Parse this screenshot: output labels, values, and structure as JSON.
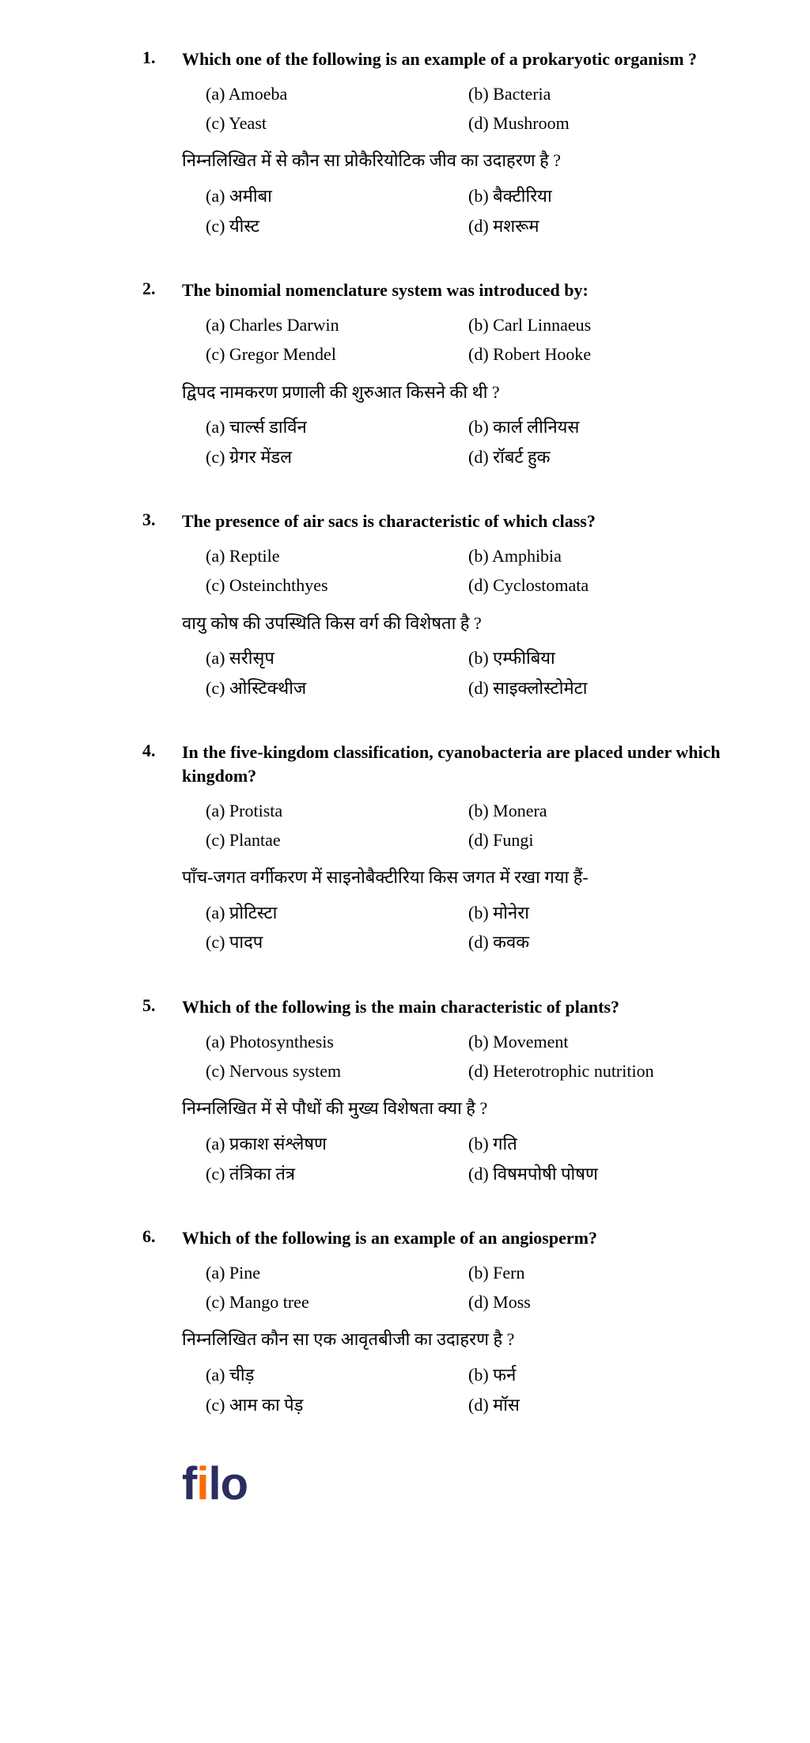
{
  "questions": [
    {
      "num": "1.",
      "text_en": "Which one of the following is an example of a prokaryotic organism ?",
      "opts_en": {
        "a": "(a) Amoeba",
        "b": "(b) Bacteria",
        "c": "(c) Yeast",
        "d": "(d) Mushroom"
      },
      "text_hi": "निम्नलिखित में से कौन सा प्रोकैरियोटिक जीव का उदाहरण है ?",
      "opts_hi": {
        "a": "(a) अमीबा",
        "b": "(b) बैक्टीरिया",
        "c": "(c) यीस्ट",
        "d": "(d) मशरूम"
      }
    },
    {
      "num": "2.",
      "text_en": "The binomial nomenclature system was introduced by:",
      "opts_en": {
        "a": "(a) Charles Darwin",
        "b": "(b) Carl Linnaeus",
        "c": "(c) Gregor Mendel",
        "d": "(d) Robert Hooke"
      },
      "text_hi": "द्विपद नामकरण प्रणाली की शुरुआत किसने की थी ?",
      "opts_hi": {
        "a": "(a) चार्ल्स डार्विन",
        "b": "(b) कार्ल लीनियस",
        "c": "(c) ग्रेगर मेंडल",
        "d": "(d) रॉबर्ट हुक"
      }
    },
    {
      "num": "3.",
      "text_en": "The presence of air sacs is characteristic of which class?",
      "opts_en": {
        "a": "(a) Reptile",
        "b": "(b) Amphibia",
        "c": "(c) Osteinchthyes",
        "d": "(d) Cyclostomata"
      },
      "text_hi": "वायु कोष की उपस्थिति किस वर्ग की विशेषता है ?",
      "opts_hi": {
        "a": "(a) सरीसृप",
        "b": "(b) एम्फीबिया",
        "c": "(c) ओस्टिक्थीज",
        "d": "(d) साइक्लोस्टोमेटा"
      }
    },
    {
      "num": "4.",
      "text_en": "In the five-kingdom classification, cyanobacteria are placed under which kingdom?",
      "opts_en": {
        "a": "(a) Protista",
        "b": "(b) Monera",
        "c": "(c) Plantae",
        "d": "(d) Fungi"
      },
      "text_hi": "पाँच-जगत वर्गीकरण में साइनोबैक्टीरिया किस जगत में रखा गया हैं-",
      "opts_hi": {
        "a": "(a) प्रोटिस्टा",
        "b": "(b) मोनेरा",
        "c": "(c) पादप",
        "d": "(d) कवक"
      }
    },
    {
      "num": "5.",
      "text_en": "Which of the following is the main characteristic of plants?",
      "opts_en": {
        "a": "(a) Photosynthesis",
        "b": "(b) Movement",
        "c": "(c) Nervous system",
        "d": "(d) Heterotrophic nutrition"
      },
      "text_hi": "निम्नलिखित में से पौधों की मुख्य विशेषता क्या है ?",
      "opts_hi": {
        "a": "(a) प्रकाश संश्लेषण",
        "b": "(b) गति",
        "c": "(c) तंत्रिका तंत्र",
        "d": "(d) विषमपोषी पोषण"
      }
    },
    {
      "num": "6.",
      "text_en": "Which of the following is an example of an angiosperm?",
      "opts_en": {
        "a": "(a) Pine",
        "b": "(b) Fern",
        "c": "(c) Mango tree",
        "d": "(d) Moss"
      },
      "text_hi": "निम्नलिखित कौन सा एक आवृतबीजी का उदाहरण है ?",
      "opts_hi": {
        "a": "(a) चीड़",
        "b": "(b) फर्न",
        "c": "(c) आम का पेड़",
        "d": "(d) मॉस"
      }
    }
  ],
  "brand": {
    "f": "f",
    "i": "i",
    "lo": "lo"
  }
}
